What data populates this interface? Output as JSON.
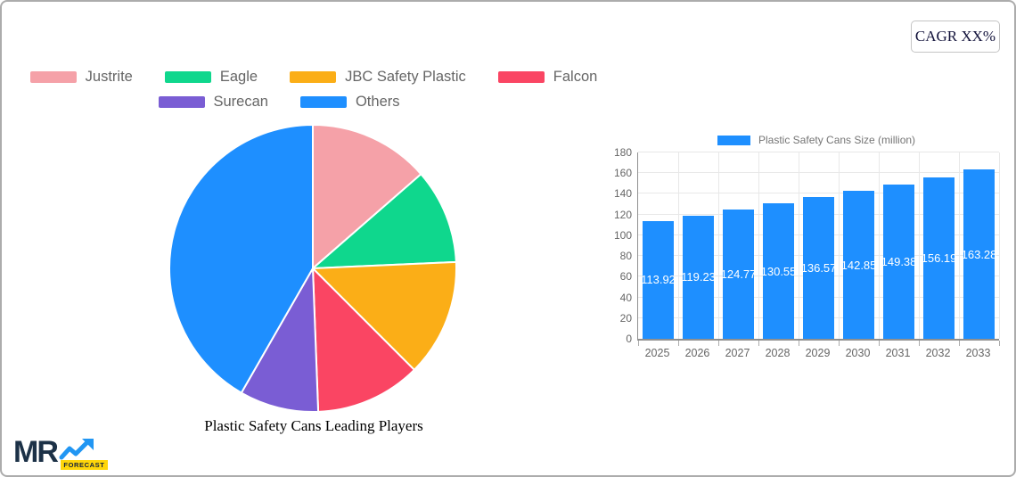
{
  "badge": {
    "label": "CAGR XX%"
  },
  "logo": {
    "brand": "MR",
    "tagline": "FORECAST"
  },
  "colors": {
    "accent_blue": "#1E8FFF",
    "logo_navy": "#1C3147",
    "logo_arrow_blue": "#2196F3",
    "logo_yellow": "#FFD60A",
    "legend_text": "#666666",
    "axis_text": "#666666",
    "gridline": "#E8E8E8"
  },
  "chart_data": [
    {
      "type": "pie",
      "title": "Plastic Safety Cans Leading Players",
      "legend_position": "top",
      "start_angle_deg": 0,
      "slices": [
        {
          "label": "Justrite",
          "value": 13.6,
          "color": "#F5A1A8"
        },
        {
          "label": "Eagle",
          "value": 10.7,
          "color": "#0FD78D"
        },
        {
          "label": "JBC Safety Plastic",
          "value": 13.2,
          "color": "#FBAE17"
        },
        {
          "label": "Falcon",
          "value": 11.9,
          "color": "#FA4563"
        },
        {
          "label": "Surecan",
          "value": 8.9,
          "color": "#7A5DD4"
        },
        {
          "label": "Others",
          "value": 41.7,
          "color": "#1E8FFF"
        }
      ]
    },
    {
      "type": "bar",
      "legend": "Plastic Safety Cans Size (million)",
      "categories": [
        "2025",
        "2026",
        "2027",
        "2028",
        "2029",
        "2030",
        "2031",
        "2032",
        "2033"
      ],
      "values": [
        113.92,
        119.23,
        124.77,
        130.55,
        136.57,
        142.85,
        149.38,
        156.19,
        163.28
      ],
      "ylim": [
        0,
        180
      ],
      "ytick_step": 20,
      "bar_color": "#1E8FFF",
      "grid": true,
      "legend_position": "top"
    }
  ]
}
